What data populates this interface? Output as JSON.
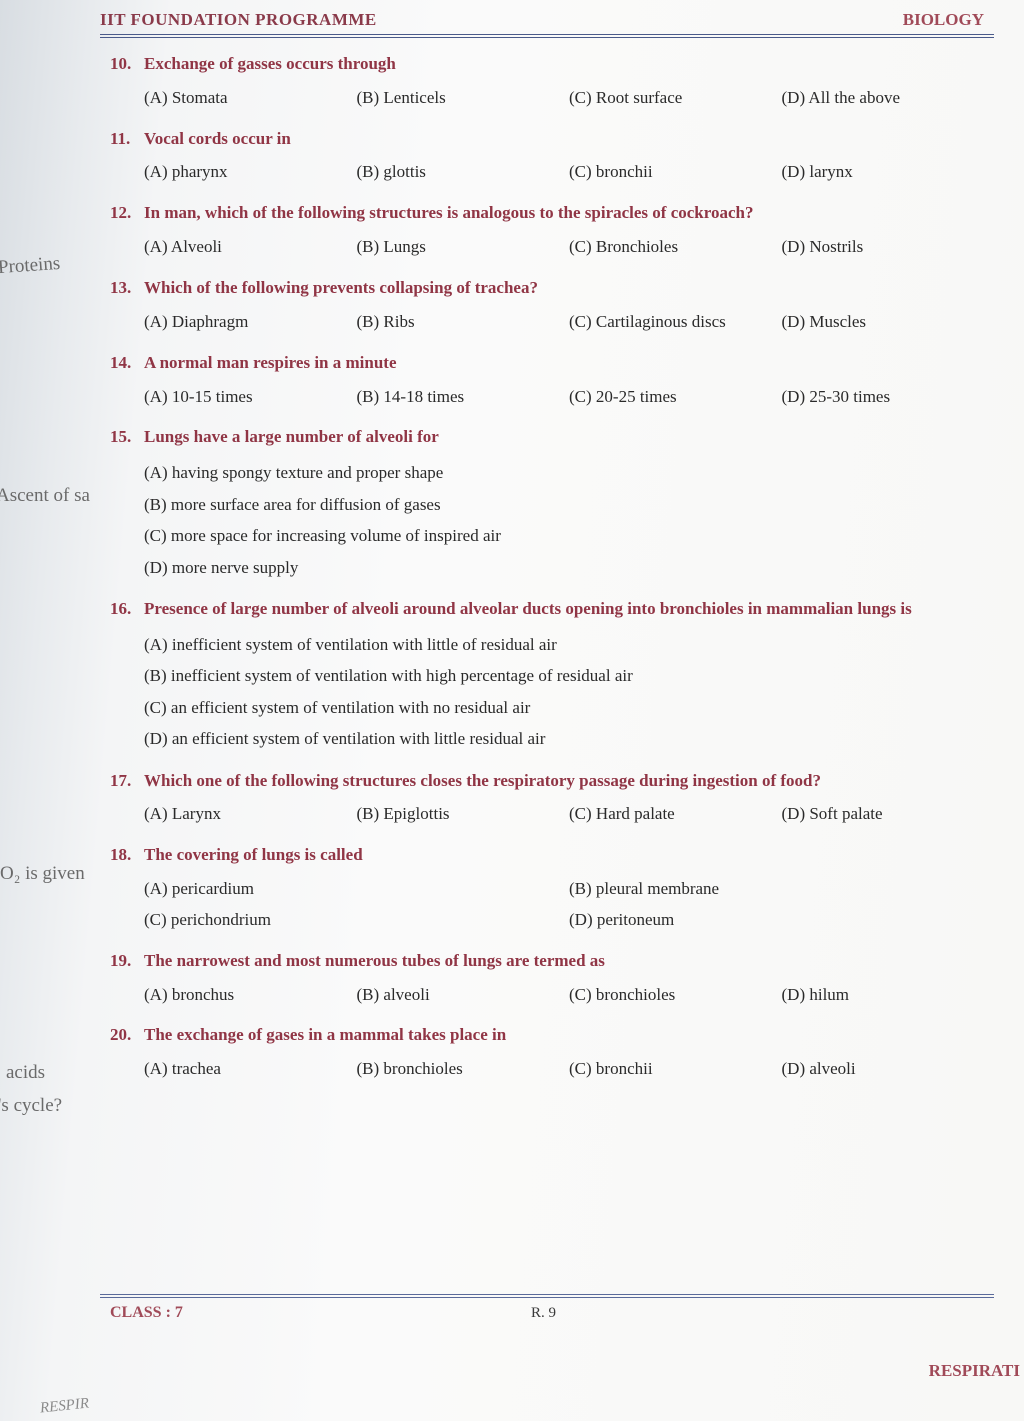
{
  "header": {
    "left": "IIT FOUNDATION PROGRAMME",
    "right": "BIOLOGY"
  },
  "margins": {
    "proteins": "Proteins",
    "ascent": "Ascent of sa",
    "o2given": "O₂ is given",
    "acids": "acids",
    "cycle": "'s cycle?",
    "resp_bl": "RESPIR"
  },
  "questions": [
    {
      "num": "10.",
      "text": "Exchange of gasses occurs through",
      "layout": "row4",
      "opts": [
        "(A) Stomata",
        "(B) Lenticels",
        "(C) Root surface",
        "(D) All the above"
      ]
    },
    {
      "num": "11.",
      "text": "Vocal cords occur in",
      "layout": "row4",
      "opts": [
        "(A) pharynx",
        "(B) glottis",
        "(C) bronchii",
        "(D) larynx"
      ]
    },
    {
      "num": "12.",
      "text": "In man, which of the following structures is analogous to the spiracles of cockroach?",
      "layout": "row4",
      "opts": [
        "(A) Alveoli",
        "(B) Lungs",
        "(C) Bronchioles",
        "(D) Nostrils"
      ]
    },
    {
      "num": "13.",
      "text": "Which of the following prevents collapsing of trachea?",
      "layout": "row4",
      "opts": [
        "(A) Diaphragm",
        "(B) Ribs",
        "(C) Cartilaginous discs",
        "(D) Muscles"
      ]
    },
    {
      "num": "14.",
      "text": "A normal man respires in a minute",
      "layout": "row4",
      "opts": [
        "(A) 10-15 times",
        "(B) 14-18 times",
        "(C) 20-25 times",
        "(D) 25-30 times"
      ]
    },
    {
      "num": "15.",
      "text": "Lungs have a large number of alveoli for",
      "layout": "col",
      "opts": [
        "(A) having spongy texture and proper shape",
        "(B) more surface area for diffusion of gases",
        "(C) more space for increasing volume of inspired air",
        "(D) more nerve supply"
      ]
    },
    {
      "num": "16.",
      "text": "Presence of large number of alveoli around alveolar ducts opening into bronchioles in mammalian lungs is",
      "layout": "col",
      "opts": [
        "(A) inefficient system of ventilation with little of residual air",
        "(B) inefficient system of ventilation with high percentage of residual air",
        "(C) an efficient system of ventilation with no residual air",
        "(D) an efficient system of ventilation with little residual air"
      ]
    },
    {
      "num": "17.",
      "text": "Which one of the following structures closes the respiratory passage during ingestion of food?",
      "layout": "row4",
      "opts": [
        "(A) Larynx",
        "(B) Epiglottis",
        "(C) Hard palate",
        "(D) Soft palate"
      ]
    },
    {
      "num": "18.",
      "text": "The covering of lungs is called",
      "layout": "row2x2",
      "opts": [
        "(A) pericardium",
        "(B) pleural membrane",
        "(C) perichondrium",
        "(D) peritoneum"
      ]
    },
    {
      "num": "19.",
      "text": "The narrowest and most numerous tubes of lungs are termed as",
      "layout": "row4",
      "opts": [
        "(A) bronchus",
        "(B) alveoli",
        "(C) bronchioles",
        "(D) hilum"
      ]
    },
    {
      "num": "20.",
      "text": "The exchange of gases in a mammal takes place in",
      "layout": "row4",
      "opts": [
        "(A) trachea",
        "(B) bronchioles",
        "(C) bronchii",
        "(D) alveoli"
      ]
    }
  ],
  "footer": {
    "left": "CLASS : 7",
    "mid": "R. 9",
    "right": "RESPIRATI"
  }
}
